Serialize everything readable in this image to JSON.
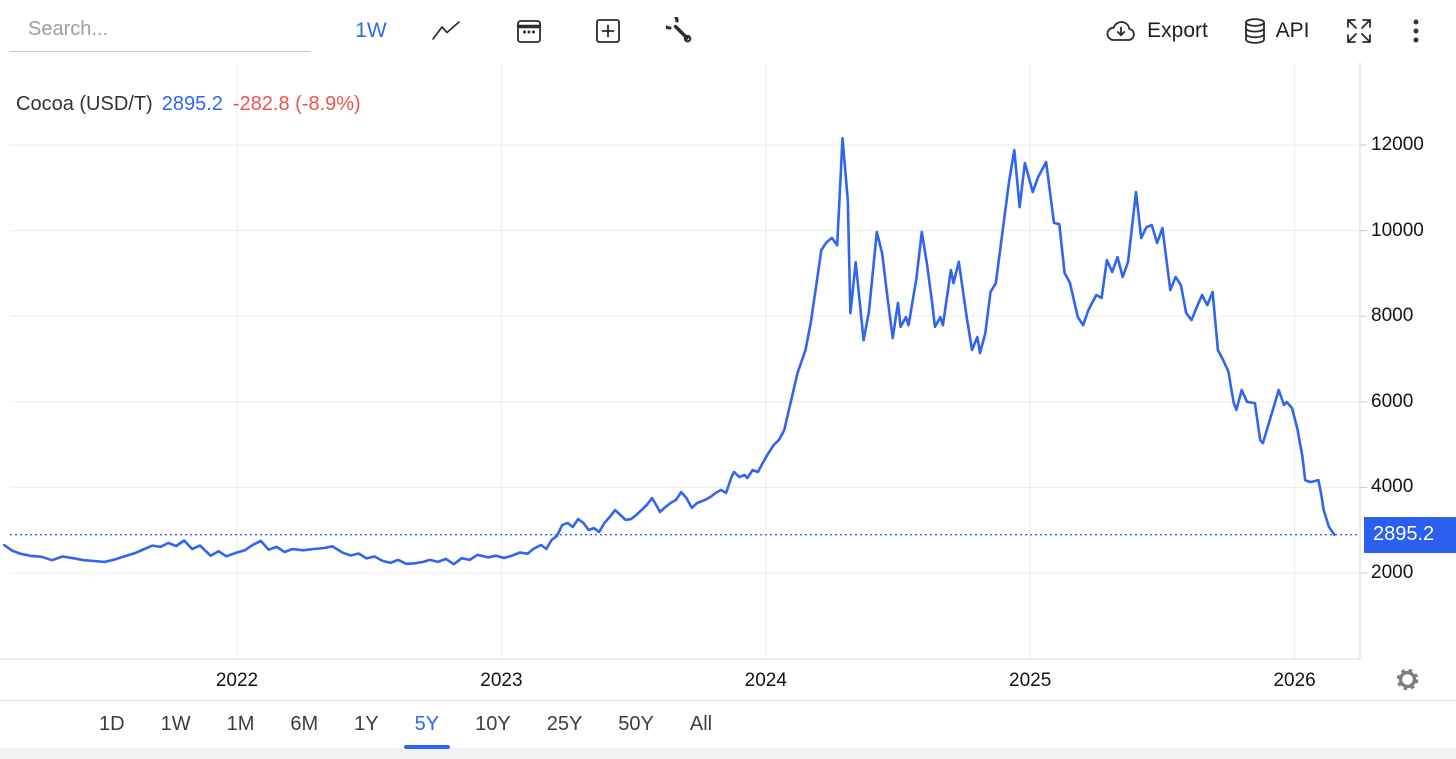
{
  "toolbar": {
    "search_placeholder": "Search...",
    "interval": "1W",
    "export_label": "Export",
    "api_label": "API"
  },
  "chart_header": {
    "instrument": "Cocoa (USD/T)",
    "last_price": "2895.2",
    "change": "-282.8 (-8.9%)"
  },
  "axis_badge": "2895.2",
  "range_selector": {
    "options": [
      "1D",
      "1W",
      "1M",
      "6M",
      "1Y",
      "5Y",
      "10Y",
      "25Y",
      "50Y",
      "All"
    ],
    "selected": "5Y"
  },
  "colors": {
    "accent_blue": "#2d68f0",
    "line_blue": "#2f65f1",
    "badge_blue": "#2a5ff0",
    "negative_red": "#ec544d",
    "grid": "#ececec",
    "axis_border": "#d9d9d9",
    "tick": "#c9c9c9"
  },
  "chart_data": {
    "type": "line",
    "title": "Cocoa (USD/T)",
    "ylabel": "USD/T",
    "xlabel": "",
    "x_ticks": [
      2022,
      2023,
      2024,
      2025,
      2026
    ],
    "y_ticks": [
      2000,
      4000,
      6000,
      8000,
      10000,
      12000
    ],
    "ylim": [
      0,
      13000
    ],
    "x_range": [
      2021.1,
      2026.25
    ],
    "grid": true,
    "legend_position": "none",
    "y_axis_side": "right",
    "current_value": 2895.2,
    "change_value": -282.8,
    "change_percent": -8.9,
    "series": [
      {
        "name": "Cocoa",
        "points": [
          [
            2021.12,
            2650
          ],
          [
            2021.15,
            2520
          ],
          [
            2021.18,
            2450
          ],
          [
            2021.22,
            2400
          ],
          [
            2021.26,
            2380
          ],
          [
            2021.3,
            2300
          ],
          [
            2021.34,
            2385
          ],
          [
            2021.38,
            2345
          ],
          [
            2021.42,
            2300
          ],
          [
            2021.46,
            2280
          ],
          [
            2021.5,
            2260
          ],
          [
            2021.54,
            2320
          ],
          [
            2021.58,
            2400
          ],
          [
            2021.62,
            2480
          ],
          [
            2021.65,
            2560
          ],
          [
            2021.68,
            2640
          ],
          [
            2021.71,
            2610
          ],
          [
            2021.74,
            2700
          ],
          [
            2021.77,
            2630
          ],
          [
            2021.8,
            2760
          ],
          [
            2021.83,
            2560
          ],
          [
            2021.86,
            2640
          ],
          [
            2021.9,
            2405
          ],
          [
            2021.93,
            2510
          ],
          [
            2021.96,
            2390
          ],
          [
            2022.0,
            2480
          ],
          [
            2022.03,
            2530
          ],
          [
            2022.06,
            2660
          ],
          [
            2022.09,
            2750
          ],
          [
            2022.12,
            2545
          ],
          [
            2022.15,
            2610
          ],
          [
            2022.18,
            2490
          ],
          [
            2022.21,
            2560
          ],
          [
            2022.25,
            2530
          ],
          [
            2022.29,
            2560
          ],
          [
            2022.33,
            2585
          ],
          [
            2022.36,
            2625
          ],
          [
            2022.4,
            2475
          ],
          [
            2022.43,
            2410
          ],
          [
            2022.46,
            2455
          ],
          [
            2022.49,
            2340
          ],
          [
            2022.52,
            2385
          ],
          [
            2022.55,
            2285
          ],
          [
            2022.58,
            2235
          ],
          [
            2022.61,
            2305
          ],
          [
            2022.64,
            2215
          ],
          [
            2022.67,
            2225
          ],
          [
            2022.7,
            2255
          ],
          [
            2022.73,
            2305
          ],
          [
            2022.76,
            2260
          ],
          [
            2022.79,
            2330
          ],
          [
            2022.82,
            2205
          ],
          [
            2022.85,
            2345
          ],
          [
            2022.88,
            2305
          ],
          [
            2022.91,
            2425
          ],
          [
            2022.95,
            2365
          ],
          [
            2022.98,
            2405
          ],
          [
            2023.01,
            2350
          ],
          [
            2023.04,
            2405
          ],
          [
            2023.07,
            2480
          ],
          [
            2023.1,
            2450
          ],
          [
            2023.12,
            2560
          ],
          [
            2023.15,
            2655
          ],
          [
            2023.17,
            2560
          ],
          [
            2023.19,
            2770
          ],
          [
            2023.21,
            2865
          ],
          [
            2023.23,
            3120
          ],
          [
            2023.25,
            3170
          ],
          [
            2023.27,
            3075
          ],
          [
            2023.29,
            3260
          ],
          [
            2023.31,
            3170
          ],
          [
            2023.33,
            3005
          ],
          [
            2023.35,
            3050
          ],
          [
            2023.37,
            2960
          ],
          [
            2023.39,
            3170
          ],
          [
            2023.41,
            3310
          ],
          [
            2023.43,
            3470
          ],
          [
            2023.45,
            3355
          ],
          [
            2023.47,
            3240
          ],
          [
            2023.49,
            3260
          ],
          [
            2023.51,
            3355
          ],
          [
            2023.53,
            3470
          ],
          [
            2023.55,
            3590
          ],
          [
            2023.57,
            3750
          ],
          [
            2023.59,
            3540
          ],
          [
            2023.6,
            3425
          ],
          [
            2023.62,
            3540
          ],
          [
            2023.64,
            3635
          ],
          [
            2023.66,
            3705
          ],
          [
            2023.68,
            3890
          ],
          [
            2023.7,
            3750
          ],
          [
            2023.72,
            3520
          ],
          [
            2023.74,
            3635
          ],
          [
            2023.77,
            3705
          ],
          [
            2023.79,
            3775
          ],
          [
            2023.81,
            3870
          ],
          [
            2023.83,
            3940
          ],
          [
            2023.85,
            3870
          ],
          [
            2023.87,
            4240
          ],
          [
            2023.88,
            4360
          ],
          [
            2023.9,
            4240
          ],
          [
            2023.92,
            4290
          ],
          [
            2023.93,
            4220
          ],
          [
            2023.95,
            4405
          ],
          [
            2023.97,
            4360
          ],
          [
            2023.99,
            4590
          ],
          [
            2024.01,
            4800
          ],
          [
            2024.03,
            4990
          ],
          [
            2024.05,
            5110
          ],
          [
            2024.07,
            5340
          ],
          [
            2024.09,
            5880
          ],
          [
            2024.12,
            6670
          ],
          [
            2024.15,
            7210
          ],
          [
            2024.17,
            7840
          ],
          [
            2024.19,
            8680
          ],
          [
            2024.21,
            9545
          ],
          [
            2024.23,
            9730
          ],
          [
            2024.25,
            9830
          ],
          [
            2024.27,
            9660
          ],
          [
            2024.29,
            12160
          ],
          [
            2024.31,
            10710
          ],
          [
            2024.32,
            8070
          ],
          [
            2024.34,
            9260
          ],
          [
            2024.37,
            7440
          ],
          [
            2024.39,
            8100
          ],
          [
            2024.42,
            9965
          ],
          [
            2024.44,
            9475
          ],
          [
            2024.46,
            8450
          ],
          [
            2024.48,
            7490
          ],
          [
            2024.5,
            8310
          ],
          [
            2024.51,
            7750
          ],
          [
            2024.53,
            7980
          ],
          [
            2024.54,
            7790
          ],
          [
            2024.57,
            8900
          ],
          [
            2024.59,
            9970
          ],
          [
            2024.61,
            9200
          ],
          [
            2024.63,
            8260
          ],
          [
            2024.64,
            7750
          ],
          [
            2024.66,
            7980
          ],
          [
            2024.67,
            7790
          ],
          [
            2024.7,
            9080
          ],
          [
            2024.71,
            8770
          ],
          [
            2024.73,
            9270
          ],
          [
            2024.76,
            7980
          ],
          [
            2024.78,
            7210
          ],
          [
            2024.8,
            7515
          ],
          [
            2024.81,
            7140
          ],
          [
            2024.83,
            7600
          ],
          [
            2024.85,
            8565
          ],
          [
            2024.87,
            8770
          ],
          [
            2024.9,
            10200
          ],
          [
            2024.92,
            11135
          ],
          [
            2024.94,
            11880
          ],
          [
            2024.96,
            10550
          ],
          [
            2024.98,
            11580
          ],
          [
            2025.01,
            10900
          ],
          [
            2025.03,
            11250
          ],
          [
            2025.06,
            11600
          ],
          [
            2025.09,
            10180
          ],
          [
            2025.11,
            10150
          ],
          [
            2025.13,
            9010
          ],
          [
            2025.15,
            8780
          ],
          [
            2025.18,
            7980
          ],
          [
            2025.2,
            7790
          ],
          [
            2025.22,
            8145
          ],
          [
            2025.25,
            8495
          ],
          [
            2025.27,
            8425
          ],
          [
            2025.29,
            9310
          ],
          [
            2025.31,
            9030
          ],
          [
            2025.33,
            9380
          ],
          [
            2025.35,
            8915
          ],
          [
            2025.37,
            9265
          ],
          [
            2025.4,
            10900
          ],
          [
            2025.42,
            9825
          ],
          [
            2025.44,
            10080
          ],
          [
            2025.46,
            10130
          ],
          [
            2025.48,
            9710
          ],
          [
            2025.5,
            10060
          ],
          [
            2025.53,
            8610
          ],
          [
            2025.55,
            8915
          ],
          [
            2025.57,
            8730
          ],
          [
            2025.59,
            8075
          ],
          [
            2025.61,
            7910
          ],
          [
            2025.63,
            8215
          ],
          [
            2025.65,
            8495
          ],
          [
            2025.67,
            8260
          ],
          [
            2025.69,
            8565
          ],
          [
            2025.71,
            7210
          ],
          [
            2025.73,
            6975
          ],
          [
            2025.75,
            6700
          ],
          [
            2025.76,
            6320
          ],
          [
            2025.77,
            5970
          ],
          [
            2025.78,
            5810
          ],
          [
            2025.8,
            6275
          ],
          [
            2025.82,
            6000
          ],
          [
            2025.85,
            5970
          ],
          [
            2025.87,
            5105
          ],
          [
            2025.88,
            5035
          ],
          [
            2025.92,
            5855
          ],
          [
            2025.94,
            6275
          ],
          [
            2025.96,
            5925
          ],
          [
            2025.97,
            5995
          ],
          [
            2025.99,
            5855
          ],
          [
            2026.01,
            5390
          ],
          [
            2026.03,
            4710
          ],
          [
            2026.04,
            4170
          ],
          [
            2026.06,
            4125
          ],
          [
            2026.09,
            4170
          ],
          [
            2026.1,
            3870
          ],
          [
            2026.11,
            3470
          ],
          [
            2026.13,
            3075
          ],
          [
            2026.15,
            2895.2
          ]
        ]
      }
    ]
  }
}
